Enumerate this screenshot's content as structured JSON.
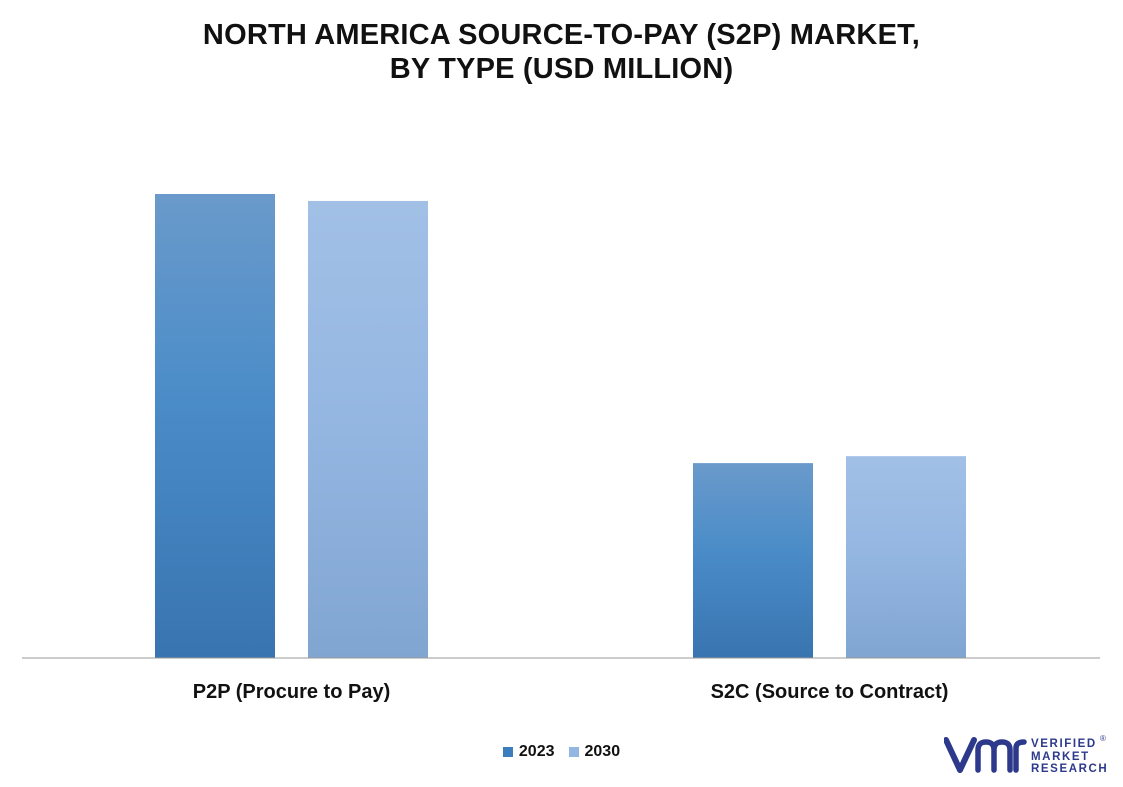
{
  "title_line1": "NORTH AMERICA SOURCE-TO-PAY (S2P) MARKET,",
  "title_line2": "BY TYPE (USD MILLION)",
  "colors": {
    "series_2023": "#3b7ebd",
    "series_2030": "#93b7e0",
    "axis": "#999999",
    "logo": "#2d3a8c"
  },
  "chart_data": {
    "type": "bar",
    "title": "NORTH AMERICA SOURCE-TO-PAY (S2P) MARKET, BY TYPE (USD MILLION)",
    "categories": [
      "P2P (Procure to Pay)",
      "S2C (Source to Contract)"
    ],
    "series": [
      {
        "name": "2023",
        "values": [
          100,
          42
        ]
      },
      {
        "name": "2030",
        "values": [
          98.5,
          43.5
        ]
      }
    ],
    "xlabel": "",
    "ylabel": "",
    "ylim": [
      0,
      105
    ],
    "grid": false,
    "legend_position": "bottom"
  },
  "logo": {
    "line1": "VERIFIED",
    "line2": "MARKET",
    "line3": "RESEARCH",
    "reg_mark": "®"
  }
}
